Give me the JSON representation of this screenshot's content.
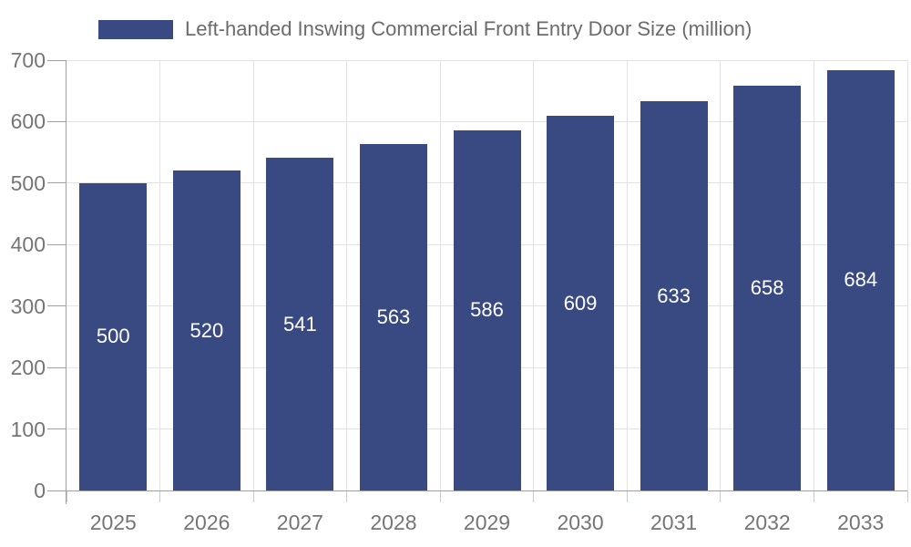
{
  "legend": {
    "label": "Left-handed Inswing Commercial Front Entry Door Size (million)"
  },
  "colors": {
    "background": "#ffffff",
    "bar": "#394a82",
    "axis": "#a0a0a0",
    "grid": "#e2e2e2",
    "minor_tick": "#c6cad2",
    "tick_label_text": "#757575",
    "value_label_text": "#ffffff",
    "legend_text": "#6b6b6b"
  },
  "chart_data": {
    "type": "bar",
    "title": "",
    "legend_entries": [
      "Left-handed Inswing Commercial Front Entry Door Size (million)"
    ],
    "legend_position": "top-left",
    "categories": [
      "2025",
      "2026",
      "2027",
      "2028",
      "2029",
      "2030",
      "2031",
      "2032",
      "2033"
    ],
    "series": [
      {
        "name": "Left-handed Inswing Commercial Front Entry Door Size (million)",
        "values": [
          500,
          520,
          541,
          563,
          586,
          609,
          633,
          658,
          684
        ]
      }
    ],
    "value_labels_shown": true,
    "value_label_placement": "inside-center",
    "xlabel": "",
    "ylabel": "",
    "ylim": [
      0,
      700
    ],
    "y_ticks": [
      0,
      100,
      200,
      300,
      400,
      500,
      600,
      700
    ],
    "grid": true
  }
}
